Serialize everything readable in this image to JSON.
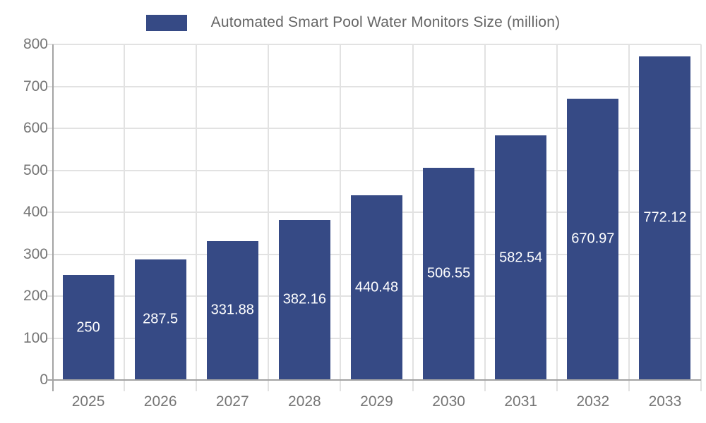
{
  "chart_data": {
    "type": "bar",
    "legend": "Automated Smart Pool Water Monitors Size (million)",
    "categories": [
      "2025",
      "2026",
      "2027",
      "2028",
      "2029",
      "2030",
      "2031",
      "2032",
      "2033"
    ],
    "values": [
      250,
      287.5,
      331.88,
      382.16,
      440.48,
      506.55,
      582.54,
      670.97,
      772.12
    ],
    "value_labels": [
      "250",
      "287.5",
      "331.88",
      "382.16",
      "440.48",
      "506.55",
      "582.54",
      "670.97",
      "772.12"
    ],
    "title": "",
    "xlabel": "",
    "ylabel": "",
    "ylim": [
      0,
      800
    ],
    "ytick_step": 100,
    "ytick_labels": [
      "0",
      "100",
      "200",
      "300",
      "400",
      "500",
      "600",
      "700",
      "800"
    ],
    "grid": "on",
    "legend_position": "top-center",
    "colors": {
      "bar_fill": "#364a85",
      "gridline": "#e2e2e2",
      "axis_line": "#a3a3a3",
      "tick_text": "#757575",
      "legend_text": "#666666",
      "value_text": "#ffffff",
      "background": "#ffffff"
    }
  }
}
